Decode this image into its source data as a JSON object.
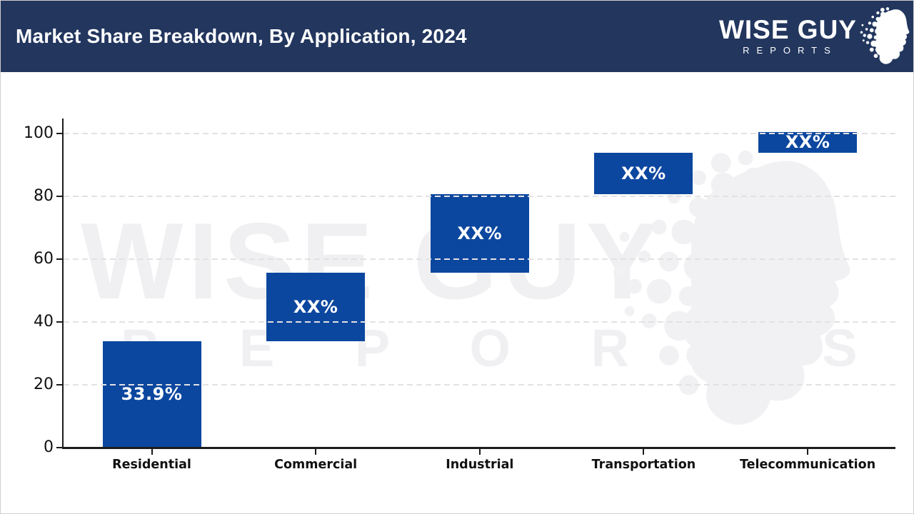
{
  "header": {
    "title": "Market Share Breakdown, By Application, 2024",
    "logo": {
      "line1": "WISE GUY",
      "line2": "REPORTS"
    }
  },
  "watermark": {
    "line1": "WISE GUY",
    "line2": "R E P O R T S"
  },
  "colors": {
    "header_bg": "#22365e",
    "bar": "#0c479f",
    "bar_label": "#ffffff",
    "grid": "#e2e2e2",
    "axis": "#1c1c1c",
    "tick_label": "#111111",
    "watermark": "#f0f0f2",
    "watermark_head": "#f1f1f3"
  },
  "chart_data": {
    "type": "bar",
    "subtype": "waterfall",
    "title": "Market Share Breakdown, By Application, 2024",
    "categories": [
      "Residential",
      "Commercial",
      "Industrial",
      "Transportation",
      "Telecommunication"
    ],
    "segments": [
      {
        "category": "Residential",
        "start": 0,
        "end": 33.9,
        "label": "33.9%"
      },
      {
        "category": "Commercial",
        "start": 33.9,
        "end": 55.6,
        "label": "XX%"
      },
      {
        "category": "Industrial",
        "start": 55.6,
        "end": 80.7,
        "label": "XX%"
      },
      {
        "category": "Transportation",
        "start": 80.7,
        "end": 93.9,
        "label": "XX%"
      },
      {
        "category": "Telecommunication",
        "start": 93.9,
        "end": 100.5,
        "label": "XX%"
      }
    ],
    "yticks": [
      0,
      20,
      40,
      60,
      80,
      100
    ],
    "ylim": [
      0,
      105
    ],
    "xlabel": "",
    "ylabel": "",
    "grid": "dashed-horizontal",
    "legend": null
  }
}
